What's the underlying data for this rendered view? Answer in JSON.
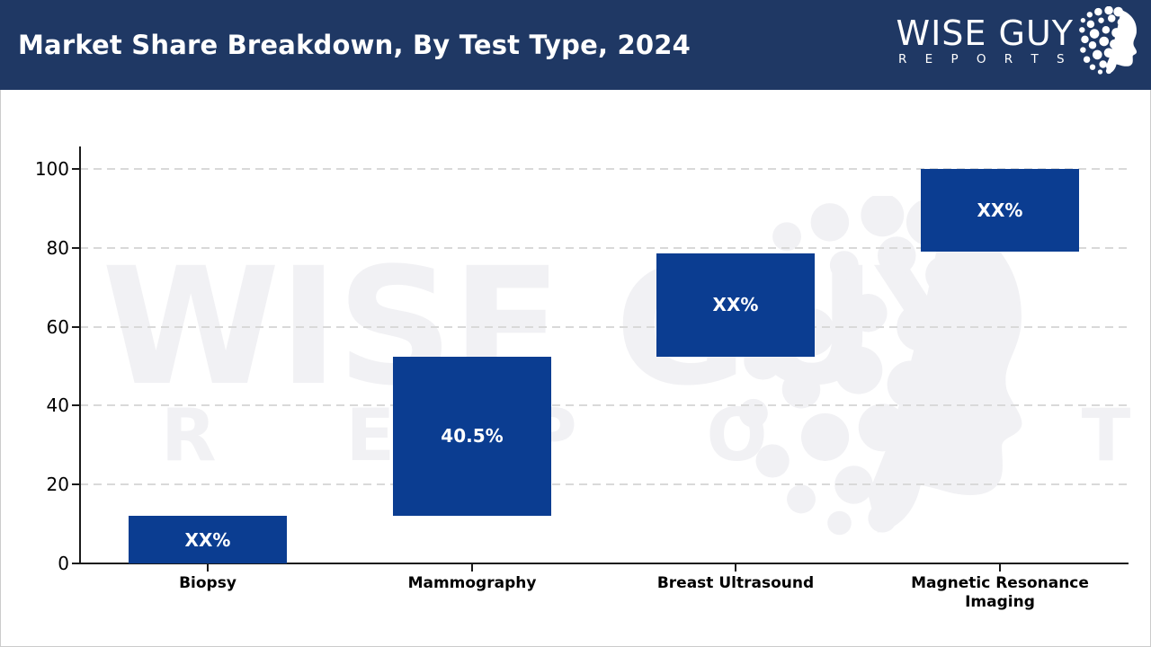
{
  "header": {
    "title": "Market Share Breakdown, By Test Type, 2024",
    "bg_color": "#1f3864",
    "logo": {
      "primary": "WISE GUY",
      "secondary": "R E P O R T S"
    }
  },
  "watermark": {
    "primary": "WISE GUY",
    "secondary": "R E P O R T S"
  },
  "chart_data": {
    "type": "bar",
    "subtype": "floating-waterfall",
    "title": "Market Share Breakdown, By Test Type, 2024",
    "categories": [
      "Biopsy",
      "Mammography",
      "Breast Ultrasound",
      "Magnetic Resonance Imaging"
    ],
    "segments": [
      {
        "category": "Biopsy",
        "start": 0,
        "end": 12,
        "value_shown": "masked",
        "label": "XX%"
      },
      {
        "category": "Mammography",
        "start": 12,
        "end": 52.5,
        "value_shown": 40.5,
        "label": "40.5%"
      },
      {
        "category": "Breast Ultrasound",
        "start": 52.5,
        "end": 78.5,
        "value_shown": "masked",
        "label": "XX%"
      },
      {
        "category": "Magnetic Resonance Imaging",
        "start": 79,
        "end": 100,
        "value_shown": "masked",
        "label": "XX%"
      }
    ],
    "yticks": [
      0,
      20,
      40,
      60,
      80,
      100
    ],
    "ylim": [
      0,
      100
    ],
    "xlabel": "",
    "ylabel": "",
    "legend": "none",
    "grid": "horizontal-dashed",
    "bar_color": "#0b3d91",
    "axis_color": "#1a1a1a",
    "grid_color": "#d9d9d9"
  }
}
